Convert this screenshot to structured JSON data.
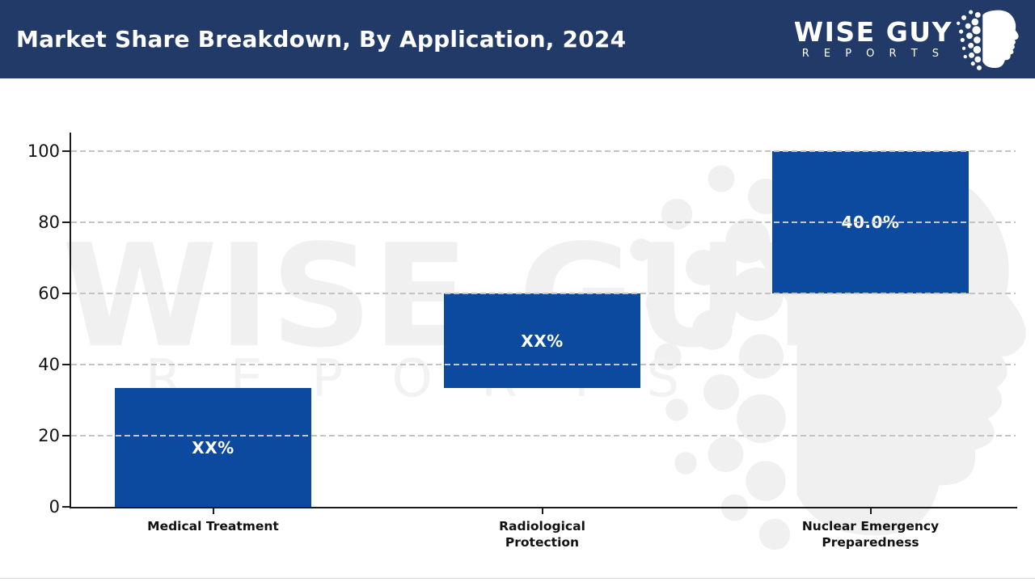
{
  "header": {
    "title": "Market Share Breakdown, By Application, 2024",
    "logo": {
      "line1": "WISE GUY",
      "line2": "R E P O R T S"
    }
  },
  "watermark": {
    "line1": "WISE GUY",
    "line2": "R E P O R T S"
  },
  "chart_data": {
    "type": "bar",
    "subtype": "floating-segment-waterfall",
    "title": "Market Share Breakdown, By Application, 2024",
    "categories": [
      "Medical Treatment",
      "Radiological Protection",
      "Nuclear Emergency Preparedness"
    ],
    "category_label_lines": [
      [
        "Medical Treatment"
      ],
      [
        "Radiological",
        "Protection"
      ],
      [
        "Nuclear Emergency",
        "Preparedness"
      ]
    ],
    "series": [
      {
        "name": "Market share (%)",
        "segments": [
          {
            "category": "Medical Treatment",
            "start": 0,
            "end": 33.3,
            "label": "XX%"
          },
          {
            "category": "Radiological Protection",
            "start": 33.3,
            "end": 60,
            "label": "XX%"
          },
          {
            "category": "Nuclear Emergency Preparedness",
            "start": 60,
            "end": 100,
            "label": "40.0%"
          }
        ]
      }
    ],
    "yticks": [
      0,
      20,
      40,
      60,
      80,
      100
    ],
    "ytick_labels": [
      "0",
      "20",
      "40",
      "60",
      "80",
      "100"
    ],
    "ylim": [
      0,
      105
    ],
    "xlabel": "",
    "ylabel": "",
    "grid": "horizontal dashed, drawn over bars",
    "legend": "none",
    "colors": {
      "bar": "#0c4a9f",
      "bar_label": "#ffffff",
      "grid": "#c4c4c4",
      "axis": "#1a1a1a",
      "tick_text": "#111111"
    }
  },
  "colors": {
    "header_bg": "#213a68",
    "page_bg": "#ffffff",
    "watermark": "#f0f0f0",
    "divider": "#d9d9d9"
  }
}
